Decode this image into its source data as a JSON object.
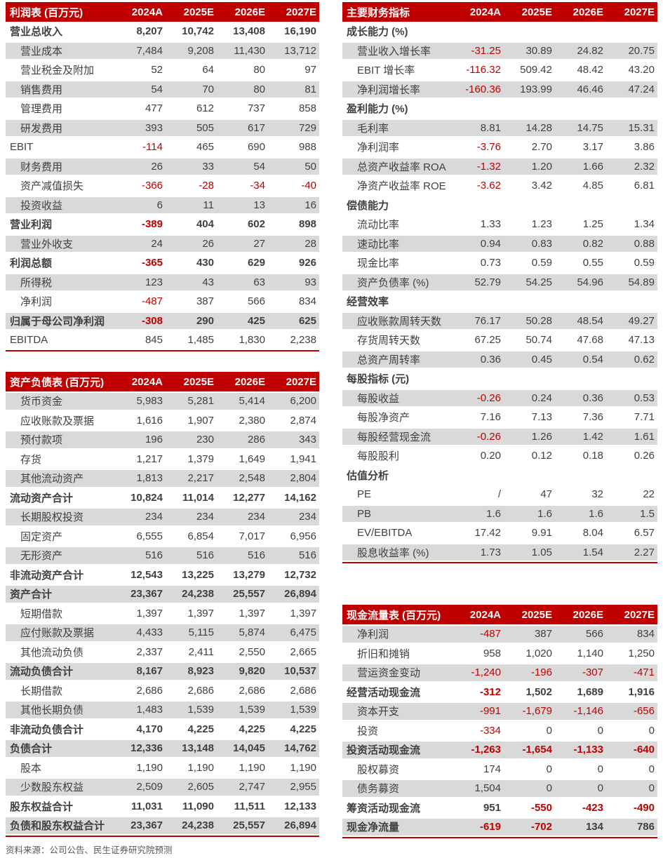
{
  "columns": [
    "2024A",
    "2025E",
    "2026E",
    "2027E"
  ],
  "source_note": "资料来源：公司公告、民生证券研究院预测",
  "colors": {
    "header_bg": "#c00000",
    "header_text": "#ffffff",
    "negative_text": "#c00000",
    "body_text": "#404040",
    "shaded_row_bg": "#d9d9d9"
  },
  "tables": {
    "income": {
      "title": "利润表 (百万元)",
      "start_shaded": false,
      "rows": [
        {
          "label": "营业总收入",
          "style": "total",
          "values": [
            "8,207",
            "10,742",
            "13,408",
            "16,190"
          ]
        },
        {
          "label": "营业成本",
          "style": "item",
          "values": [
            "7,484",
            "9,208",
            "11,430",
            "13,712"
          ]
        },
        {
          "label": "营业税金及附加",
          "style": "item",
          "values": [
            "52",
            "64",
            "80",
            "97"
          ]
        },
        {
          "label": "销售费用",
          "style": "item",
          "values": [
            "54",
            "70",
            "80",
            "81"
          ]
        },
        {
          "label": "管理费用",
          "style": "item",
          "values": [
            "477",
            "612",
            "737",
            "858"
          ]
        },
        {
          "label": "研发费用",
          "style": "item",
          "values": [
            "393",
            "505",
            "617",
            "729"
          ]
        },
        {
          "label": "EBIT",
          "style": "plain",
          "values": [
            "-114",
            "465",
            "690",
            "988"
          ]
        },
        {
          "label": "财务费用",
          "style": "item",
          "values": [
            "26",
            "33",
            "54",
            "50"
          ]
        },
        {
          "label": "资产减值损失",
          "style": "item",
          "values": [
            "-366",
            "-28",
            "-34",
            "-40"
          ]
        },
        {
          "label": "投资收益",
          "style": "item",
          "values": [
            "6",
            "11",
            "13",
            "16"
          ]
        },
        {
          "label": "营业利润",
          "style": "total",
          "values": [
            "-389",
            "404",
            "602",
            "898"
          ]
        },
        {
          "label": "营业外收支",
          "style": "item",
          "values": [
            "24",
            "26",
            "27",
            "28"
          ]
        },
        {
          "label": "利润总额",
          "style": "total",
          "values": [
            "-365",
            "430",
            "629",
            "926"
          ]
        },
        {
          "label": "所得税",
          "style": "item",
          "values": [
            "123",
            "43",
            "63",
            "93"
          ]
        },
        {
          "label": "净利润",
          "style": "item",
          "values": [
            "-487",
            "387",
            "566",
            "834"
          ]
        },
        {
          "label": "归属于母公司净利润",
          "style": "total",
          "values": [
            "-308",
            "290",
            "425",
            "625"
          ]
        },
        {
          "label": "EBITDA",
          "style": "plain",
          "values": [
            "845",
            "1,485",
            "1,830",
            "2,238"
          ]
        }
      ]
    },
    "balance": {
      "title": "资产负债表 (百万元)",
      "start_shaded": true,
      "rows": [
        {
          "label": "货币资金",
          "style": "item",
          "values": [
            "5,983",
            "5,281",
            "5,414",
            "6,200"
          ]
        },
        {
          "label": "应收账款及票据",
          "style": "item",
          "values": [
            "1,616",
            "1,907",
            "2,380",
            "2,874"
          ]
        },
        {
          "label": "预付款项",
          "style": "item",
          "values": [
            "196",
            "230",
            "286",
            "343"
          ]
        },
        {
          "label": "存货",
          "style": "item",
          "values": [
            "1,217",
            "1,379",
            "1,649",
            "1,941"
          ]
        },
        {
          "label": "其他流动资产",
          "style": "item",
          "values": [
            "1,813",
            "2,217",
            "2,548",
            "2,804"
          ]
        },
        {
          "label": "流动资产合计",
          "style": "total",
          "values": [
            "10,824",
            "11,014",
            "12,277",
            "14,162"
          ]
        },
        {
          "label": "长期股权投资",
          "style": "item",
          "values": [
            "234",
            "234",
            "234",
            "234"
          ]
        },
        {
          "label": "固定资产",
          "style": "item",
          "values": [
            "6,555",
            "6,854",
            "7,017",
            "6,956"
          ]
        },
        {
          "label": "无形资产",
          "style": "item",
          "values": [
            "516",
            "516",
            "516",
            "516"
          ]
        },
        {
          "label": "非流动资产合计",
          "style": "total",
          "values": [
            "12,543",
            "13,225",
            "13,279",
            "12,732"
          ]
        },
        {
          "label": "资产合计",
          "style": "total",
          "values": [
            "23,367",
            "24,238",
            "25,557",
            "26,894"
          ]
        },
        {
          "label": "短期借款",
          "style": "item",
          "values": [
            "1,397",
            "1,397",
            "1,397",
            "1,397"
          ]
        },
        {
          "label": "应付账款及票据",
          "style": "item",
          "values": [
            "4,433",
            "5,115",
            "5,874",
            "6,475"
          ]
        },
        {
          "label": "其他流动负债",
          "style": "item",
          "values": [
            "2,337",
            "2,411",
            "2,550",
            "2,665"
          ]
        },
        {
          "label": "流动负债合计",
          "style": "total",
          "values": [
            "8,167",
            "8,923",
            "9,820",
            "10,537"
          ]
        },
        {
          "label": "长期借款",
          "style": "item",
          "values": [
            "2,686",
            "2,686",
            "2,686",
            "2,686"
          ]
        },
        {
          "label": "其他长期负债",
          "style": "item",
          "values": [
            "1,483",
            "1,539",
            "1,539",
            "1,539"
          ]
        },
        {
          "label": "非流动负债合计",
          "style": "total",
          "values": [
            "4,170",
            "4,225",
            "4,225",
            "4,225"
          ]
        },
        {
          "label": "负债合计",
          "style": "total",
          "values": [
            "12,336",
            "13,148",
            "14,045",
            "14,762"
          ]
        },
        {
          "label": "股本",
          "style": "item",
          "values": [
            "1,190",
            "1,190",
            "1,190",
            "1,190"
          ]
        },
        {
          "label": "少数股东权益",
          "style": "item",
          "values": [
            "2,509",
            "2,605",
            "2,747",
            "2,955"
          ]
        },
        {
          "label": "股东权益合计",
          "style": "total",
          "values": [
            "11,031",
            "11,090",
            "11,511",
            "12,133"
          ]
        },
        {
          "label": "负债和股东权益合计",
          "style": "total",
          "values": [
            "23,367",
            "24,238",
            "25,557",
            "26,894"
          ]
        }
      ]
    },
    "indicators": {
      "title": "主要财务指标",
      "start_shaded": false,
      "rows": [
        {
          "label": "成长能力 (%)",
          "style": "section",
          "values": [
            "",
            "",
            "",
            ""
          ]
        },
        {
          "label": "营业收入增长率",
          "style": "item",
          "values": [
            "-31.25",
            "30.89",
            "24.82",
            "20.75"
          ]
        },
        {
          "label": "EBIT 增长率",
          "style": "item",
          "values": [
            "-116.32",
            "509.42",
            "48.42",
            "43.20"
          ]
        },
        {
          "label": "净利润增长率",
          "style": "item",
          "values": [
            "-160.36",
            "193.99",
            "46.46",
            "47.24"
          ]
        },
        {
          "label": "盈利能力 (%)",
          "style": "section",
          "values": [
            "",
            "",
            "",
            ""
          ]
        },
        {
          "label": "毛利率",
          "style": "item",
          "values": [
            "8.81",
            "14.28",
            "14.75",
            "15.31"
          ]
        },
        {
          "label": "净利润率",
          "style": "item",
          "values": [
            "-3.76",
            "2.70",
            "3.17",
            "3.86"
          ]
        },
        {
          "label": "总资产收益率 ROA",
          "style": "item",
          "values": [
            "-1.32",
            "1.20",
            "1.66",
            "2.32"
          ]
        },
        {
          "label": "净资产收益率 ROE",
          "style": "item",
          "values": [
            "-3.62",
            "3.42",
            "4.85",
            "6.81"
          ]
        },
        {
          "label": "偿债能力",
          "style": "section",
          "values": [
            "",
            "",
            "",
            ""
          ]
        },
        {
          "label": "流动比率",
          "style": "item",
          "values": [
            "1.33",
            "1.23",
            "1.25",
            "1.34"
          ]
        },
        {
          "label": "速动比率",
          "style": "item",
          "values": [
            "0.94",
            "0.83",
            "0.82",
            "0.88"
          ]
        },
        {
          "label": "现金比率",
          "style": "item",
          "values": [
            "0.73",
            "0.59",
            "0.55",
            "0.59"
          ]
        },
        {
          "label": "资产负债率 (%)",
          "style": "item",
          "values": [
            "52.79",
            "54.25",
            "54.96",
            "54.89"
          ]
        },
        {
          "label": "经营效率",
          "style": "section",
          "values": [
            "",
            "",
            "",
            ""
          ]
        },
        {
          "label": "应收账款周转天数",
          "style": "item",
          "values": [
            "76.17",
            "50.28",
            "48.54",
            "49.27"
          ]
        },
        {
          "label": "存货周转天数",
          "style": "item",
          "values": [
            "67.25",
            "50.74",
            "47.68",
            "47.13"
          ]
        },
        {
          "label": "总资产周转率",
          "style": "item",
          "values": [
            "0.36",
            "0.45",
            "0.54",
            "0.62"
          ]
        },
        {
          "label": "每股指标 (元)",
          "style": "section",
          "values": [
            "",
            "",
            "",
            ""
          ]
        },
        {
          "label": "每股收益",
          "style": "item",
          "values": [
            "-0.26",
            "0.24",
            "0.36",
            "0.53"
          ]
        },
        {
          "label": "每股净资产",
          "style": "item",
          "values": [
            "7.16",
            "7.13",
            "7.36",
            "7.71"
          ]
        },
        {
          "label": "每股经营现金流",
          "style": "item",
          "values": [
            "-0.26",
            "1.26",
            "1.42",
            "1.61"
          ]
        },
        {
          "label": "每股股利",
          "style": "item",
          "values": [
            "0.20",
            "0.12",
            "0.18",
            "0.26"
          ]
        },
        {
          "label": "估值分析",
          "style": "section",
          "values": [
            "",
            "",
            "",
            ""
          ]
        },
        {
          "label": "PE",
          "style": "item",
          "values": [
            "/",
            "47",
            "32",
            "22"
          ]
        },
        {
          "label": "PB",
          "style": "item",
          "values": [
            "1.6",
            "1.6",
            "1.6",
            "1.5"
          ]
        },
        {
          "label": "EV/EBITDA",
          "style": "item",
          "values": [
            "17.42",
            "9.91",
            "8.04",
            "6.57"
          ]
        },
        {
          "label": "股息收益率 (%)",
          "style": "item",
          "values": [
            "1.73",
            "1.05",
            "1.54",
            "2.27"
          ]
        }
      ]
    },
    "cashflow": {
      "title": "现金流量表 (百万元)",
      "start_shaded": true,
      "rows": [
        {
          "label": "净利润",
          "style": "item",
          "values": [
            "-487",
            "387",
            "566",
            "834"
          ]
        },
        {
          "label": "折旧和摊销",
          "style": "item",
          "values": [
            "958",
            "1,020",
            "1,140",
            "1,250"
          ]
        },
        {
          "label": "营运资金变动",
          "style": "item",
          "values": [
            "-1,240",
            "-196",
            "-307",
            "-471"
          ]
        },
        {
          "label": "经营活动现金流",
          "style": "total",
          "values": [
            "-312",
            "1,502",
            "1,689",
            "1,916"
          ]
        },
        {
          "label": "资本开支",
          "style": "item",
          "values": [
            "-991",
            "-1,679",
            "-1,146",
            "-656"
          ]
        },
        {
          "label": "投资",
          "style": "item",
          "values": [
            "-334",
            "0",
            "0",
            "0"
          ]
        },
        {
          "label": "投资活动现金流",
          "style": "total",
          "values": [
            "-1,263",
            "-1,654",
            "-1,133",
            "-640"
          ]
        },
        {
          "label": "股权募资",
          "style": "item",
          "values": [
            "174",
            "0",
            "0",
            "0"
          ]
        },
        {
          "label": "债务募资",
          "style": "item",
          "values": [
            "1,504",
            "0",
            "0",
            "0"
          ]
        },
        {
          "label": "筹资活动现金流",
          "style": "total",
          "values": [
            "951",
            "-550",
            "-423",
            "-490"
          ]
        },
        {
          "label": "现金净流量",
          "style": "total",
          "values": [
            "-619",
            "-702",
            "134",
            "786"
          ]
        }
      ]
    }
  }
}
